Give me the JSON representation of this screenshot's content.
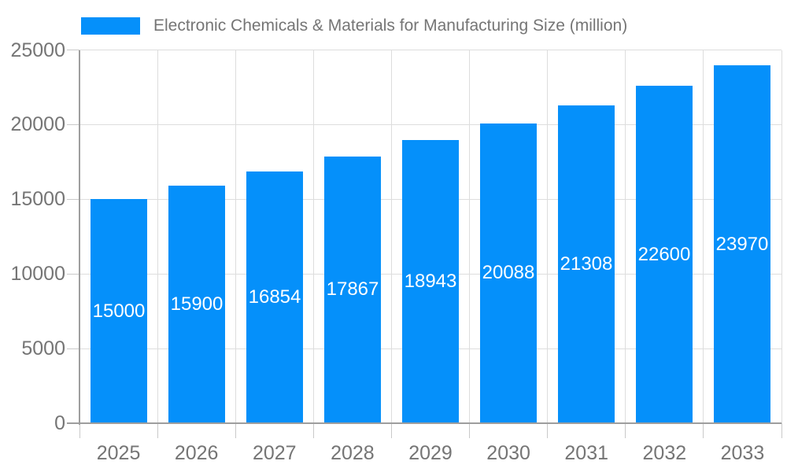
{
  "legend": {
    "label": "Electronic Chemicals & Materials for Manufacturing Size (million)"
  },
  "colors": {
    "bar": "#0590FA",
    "axis": "#9E9E9E",
    "grid": "#DDDDDD",
    "tick": "#C9C9C9",
    "text": "#757575",
    "value_text": "#FFFFFF",
    "background": "#FFFFFF"
  },
  "chart_data": {
    "type": "bar",
    "title": "Electronic Chemicals & Materials for Manufacturing Size (million)",
    "categories": [
      "2025",
      "2026",
      "2027",
      "2028",
      "2029",
      "2030",
      "2031",
      "2032",
      "2033"
    ],
    "series": [
      {
        "name": "Electronic Chemicals & Materials for Manufacturing Size (million)",
        "values": [
          15000,
          15900,
          16854,
          17867,
          18943,
          20088,
          21308,
          22600,
          23970
        ]
      }
    ],
    "xlabel": "",
    "ylabel": "",
    "ylim": [
      0,
      25000
    ],
    "yticks": [
      0,
      5000,
      10000,
      15000,
      20000,
      25000
    ],
    "grid": true,
    "legend_position": "top-left",
    "value_labels": "inside-center"
  }
}
